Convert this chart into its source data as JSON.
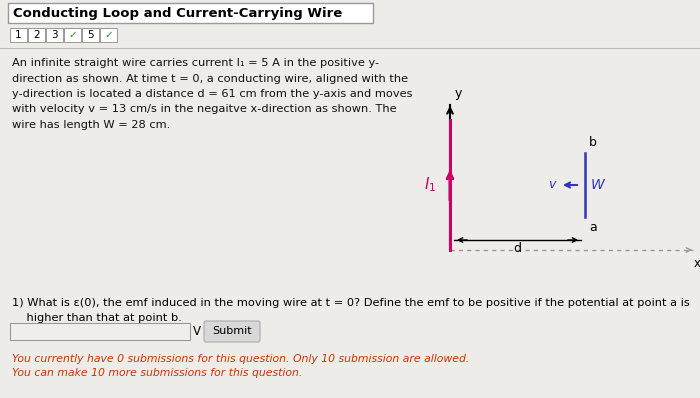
{
  "title": "Conducting Loop and Current-Carrying Wire",
  "nav_items": [
    "1",
    "2",
    "3",
    "✓",
    "5",
    "✓"
  ],
  "body_line1": "An infinite straight wire carries current I₁ = 5 A in the positive y-",
  "body_line2": "direction as shown. At time t = 0, a conducting wire, aligned with the",
  "body_line3": "y-direction is located a distance d = 61 cm from the y-axis and moves",
  "body_line4": "with velocity v = 13 cm/s in the negaitve x-direction as shown. The",
  "body_line5": "wire has length W = 28 cm.",
  "question_line1": "1) What is ε(0), the emf induced in the moving wire at t = 0? Define the emf to be positive if the potential at point a is",
  "question_line2": "    higher than that at point b.",
  "submit_btn": "Submit",
  "footer_line1": "You currently have 0 submissions for this question. Only 10 submission are allowed.",
  "footer_line2": "You can make 10 more submissions for this question.",
  "bg_color": "#eeece8",
  "title_bg": "#ffffff",
  "border_color": "#999999",
  "wire_color": "#cc0066",
  "label_color": "#3333bb",
  "axis_color": "#000000",
  "dotted_color": "#999999",
  "nav_check_color": "#228B22",
  "footer_color": "#cc3300",
  "text_color": "#111111"
}
